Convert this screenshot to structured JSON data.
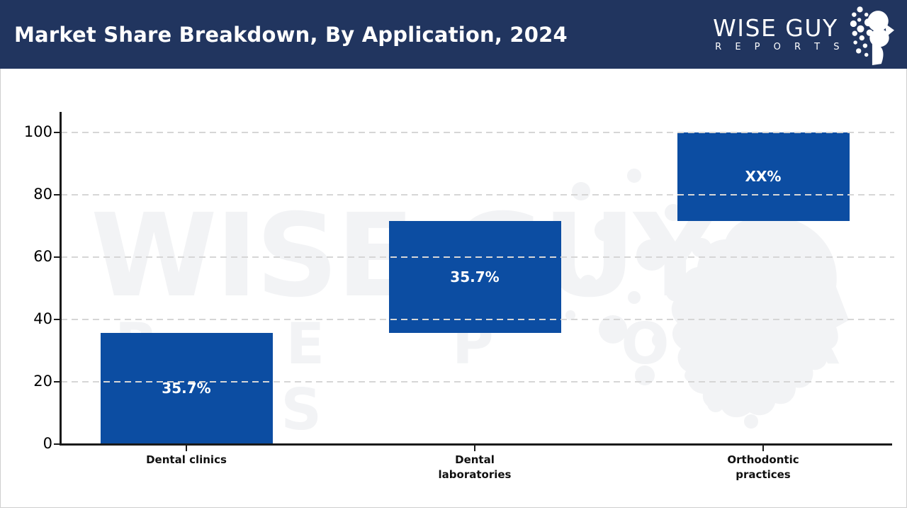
{
  "header": {
    "title": "Market Share Breakdown, By Application, 2024",
    "bg_color": "#21355f",
    "logo": {
      "line1": "WISE GUY",
      "line2": "R E P O R T S"
    }
  },
  "watermark": {
    "line1": "WISE GUY",
    "line2": "R E P O R T S"
  },
  "chart_data": {
    "type": "bar",
    "subtype": "waterfall-stacked",
    "title": "Market Share Breakdown, By Application, 2024",
    "categories": [
      "Dental clinics",
      "Dental laboratories",
      "Orthodontic practices"
    ],
    "categories_lines": [
      [
        "Dental clinics"
      ],
      [
        "Dental",
        "laboratories"
      ],
      [
        "Orthodontic",
        "practices"
      ]
    ],
    "segments": [
      [
        0,
        35.7
      ],
      [
        35.7,
        71.4
      ],
      [
        71.4,
        100
      ]
    ],
    "values": [
      35.7,
      35.7,
      28.6
    ],
    "bar_labels": [
      "35.7%",
      "35.7%",
      "XX%"
    ],
    "bar_color": "#0c4da2",
    "label_color": "#ffffff",
    "xlabel": "",
    "ylabel": "",
    "ylim": [
      0,
      100
    ],
    "yticks": [
      0,
      20,
      40,
      60,
      80,
      100
    ],
    "grid": "horizontal dashed",
    "gridline_color": "#d6d6d6",
    "legend": "none"
  }
}
